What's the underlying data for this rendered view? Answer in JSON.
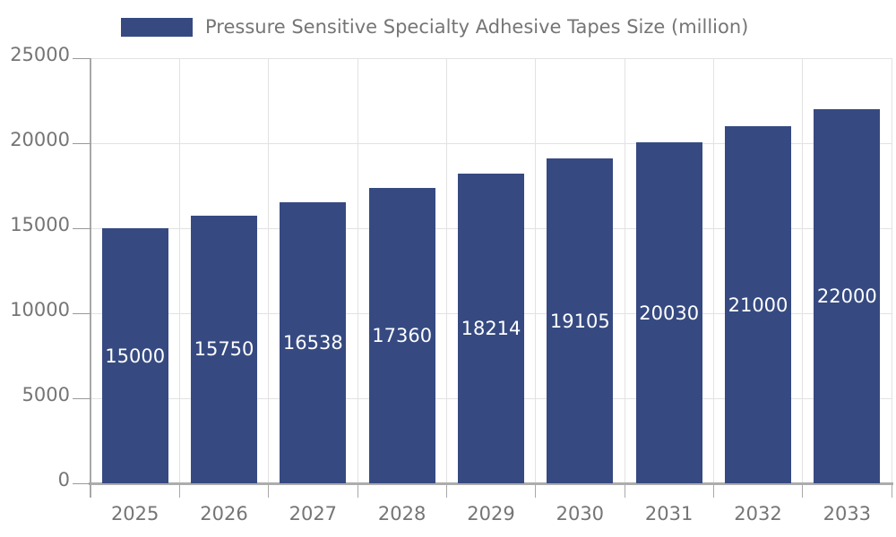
{
  "style": {
    "background": "#ffffff",
    "bar_color": "#364a81",
    "grid_color": "#e2e2e2",
    "axis_color": "#a8a8a8",
    "tick_color": "#999999",
    "label_color": "#757575",
    "value_label_color": "#ffffff"
  },
  "legend": {
    "swatch_color": "#364a81",
    "label": "Pressure Sensitive Specialty Adhesive Tapes Size (million)"
  },
  "chart_data": {
    "type": "bar",
    "title": "Pressure Sensitive Specialty Adhesive Tapes Size (million)",
    "xlabel": "",
    "ylabel": "",
    "categories": [
      "2025",
      "2026",
      "2027",
      "2028",
      "2029",
      "2030",
      "2031",
      "2032",
      "2033"
    ],
    "values": [
      15000,
      15750,
      16538,
      17360,
      18214,
      19105,
      20030,
      21000,
      22000
    ],
    "value_labels": [
      "15000",
      "15750",
      "16538",
      "17360",
      "18214",
      "19105",
      "20030",
      "21000",
      "22000"
    ],
    "ylim": [
      0,
      25000
    ],
    "y_ticks": [
      0,
      5000,
      10000,
      15000,
      20000,
      25000
    ],
    "y_tick_labels": [
      "0",
      "5000",
      "10000",
      "15000",
      "20000",
      "25000"
    ],
    "grid": true,
    "legend_position": "top",
    "value_labels_position": "center-inside"
  }
}
